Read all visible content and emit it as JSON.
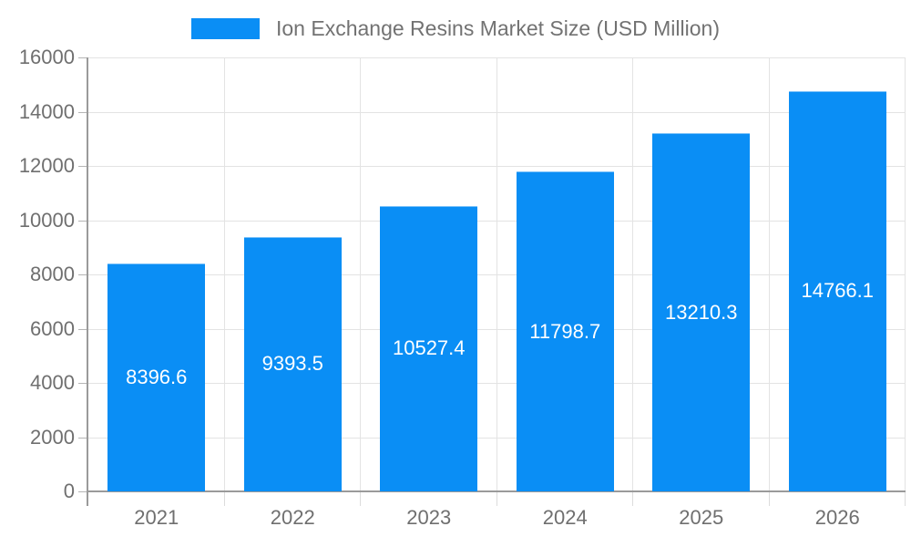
{
  "chart_data": {
    "type": "bar",
    "title": "Ion Exchange Resins Market Size (USD Million)",
    "categories": [
      "2021",
      "2022",
      "2023",
      "2024",
      "2025",
      "2026"
    ],
    "series": [
      {
        "name": "Ion Exchange Resins Market Size (USD Million)",
        "values": [
          8396.6,
          9393.5,
          10527.4,
          11798.7,
          13210.3,
          14766.1
        ]
      }
    ],
    "xlabel": "",
    "ylabel": "",
    "ylim": [
      0,
      16000
    ],
    "yticks": [
      0,
      2000,
      4000,
      6000,
      8000,
      10000,
      12000,
      14000,
      16000
    ],
    "grid": true,
    "legend_position": "top-center",
    "value_labels_position": "inside-center",
    "colors": {
      "bar": "#0a8ef5",
      "bar_top_edge": "#7cc2f9",
      "value_label": "#ffffff",
      "axis_text": "#6f6f6f",
      "legend_text": "#727272",
      "gridline": "#e3e3e3",
      "axis_line": "#9a9a9a",
      "y_tick": "#b5b5b5",
      "x_tick": "#dcdcdc",
      "background": "#ffffff"
    }
  }
}
